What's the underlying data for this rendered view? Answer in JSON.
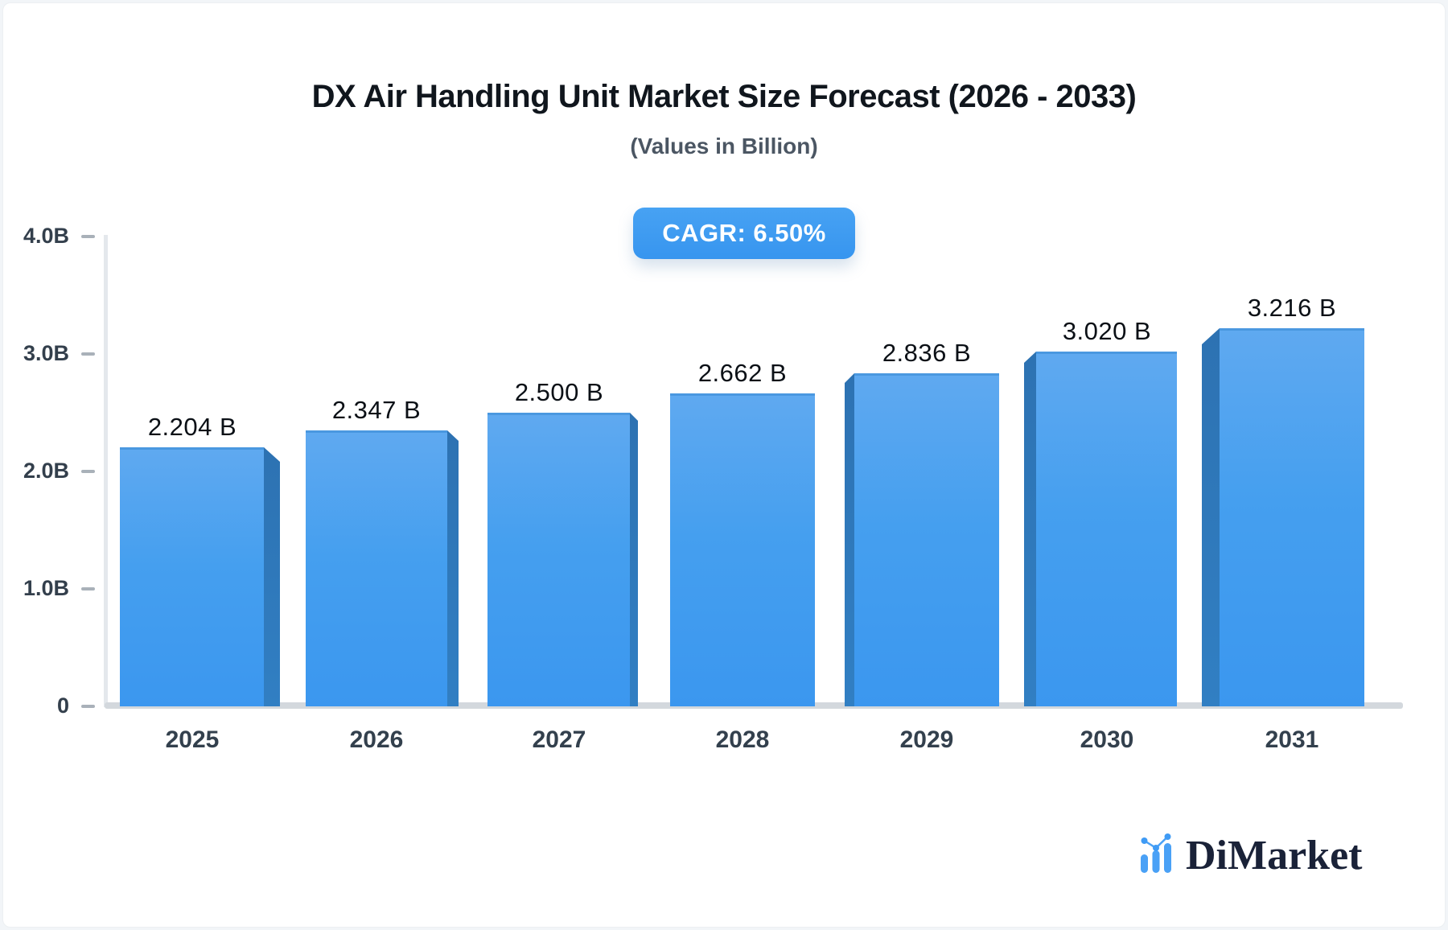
{
  "header": {
    "title": "DX Air Handling Unit Market Size Forecast (2026 - 2033)",
    "subtitle": "(Values in Billion)"
  },
  "badge": {
    "label": "CAGR: 6.50%"
  },
  "chart_data": {
    "type": "bar",
    "title": "DX Air Handling Unit Market Size Forecast (2026 - 2033)",
    "subtitle": "(Values in Billion)",
    "cagr_label": "CAGR: 6.50%",
    "categories": [
      "2025",
      "2026",
      "2027",
      "2028",
      "2029",
      "2030",
      "2031"
    ],
    "values": [
      2.204,
      2.347,
      2.5,
      2.662,
      2.836,
      3.02,
      3.216
    ],
    "bar_labels": [
      "2.204 B",
      "2.347 B",
      "2.500 B",
      "2.662 B",
      "2.836 B",
      "3.020 B",
      "3.216 B"
    ],
    "xlabel": "",
    "ylabel": "",
    "ylim": [
      0,
      4.0
    ],
    "yticks": [
      {
        "label": "4.0B",
        "value": 4.0
      },
      {
        "label": "3.0B",
        "value": 3.0
      },
      {
        "label": "2.0B",
        "value": 2.0
      },
      {
        "label": "1.0B",
        "value": 1.0
      },
      {
        "label": "0",
        "value": 0.0
      }
    ],
    "grid": false,
    "legend": null,
    "bar_style": "3d-perspective",
    "colors": {
      "bar_face_top": "#5fa9f0",
      "bar_face_bottom": "#3b97ef",
      "bar_side": "#2e77b9",
      "badge_background": "#3b9bf0",
      "axis_line": "#d3d8dd",
      "tick_text": "#333f4c",
      "value_text": "#0b1016",
      "title_text": "#10161d"
    }
  },
  "logo": {
    "name": "DiMarket",
    "icon": "mini-bar-line-chart-icon",
    "icon_color": "#4aa1f6",
    "text_color": "#1a2238"
  }
}
